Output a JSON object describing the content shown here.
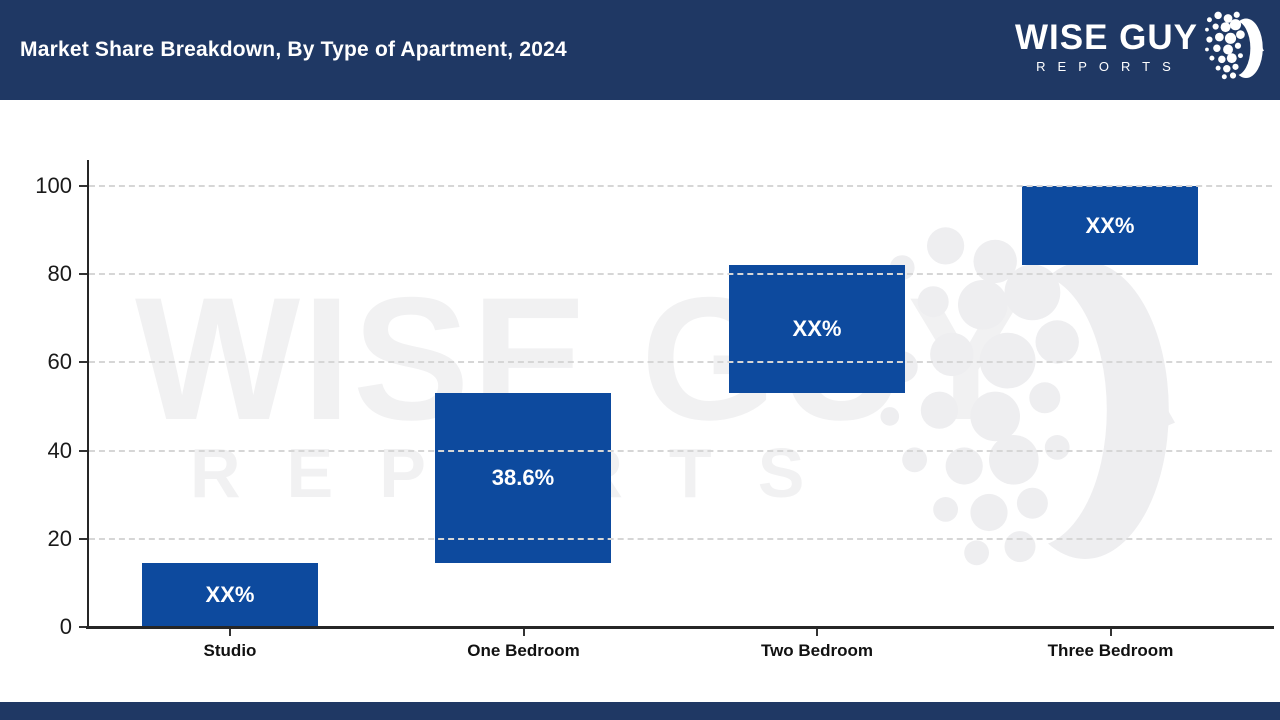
{
  "header": {
    "title": "Market Share Breakdown, By Type of Apartment, 2024",
    "logo": {
      "line1": "WISE GUY",
      "line2": "REPORTS"
    }
  },
  "watermark": {
    "line1": "WISE GUY",
    "line2": "REPORTS"
  },
  "chart_data": {
    "type": "bar",
    "subtype": "waterfall-floating-bars",
    "title": "Market Share Breakdown, By Type of Apartment, 2024",
    "categories": [
      "Studio",
      "One Bedroom",
      "Two Bedroom",
      "Three Bedroom"
    ],
    "series": [
      {
        "name": "Market share (%)",
        "segments": [
          {
            "category": "Studio",
            "start": 0,
            "end": 14.5,
            "value": 14.5,
            "value_label": "XX%"
          },
          {
            "category": "One Bedroom",
            "start": 14.5,
            "end": 53.1,
            "value": 38.6,
            "value_label": "38.6%"
          },
          {
            "category": "Two Bedroom",
            "start": 53.1,
            "end": 82,
            "value": 28.9,
            "value_label": "XX%"
          },
          {
            "category": "Three Bedroom",
            "start": 82,
            "end": 100,
            "value": 18,
            "value_label": "XX%"
          }
        ]
      }
    ],
    "xlabel": "",
    "ylabel": "",
    "ylim": [
      0,
      100
    ],
    "yticks": [
      0,
      20,
      40,
      60,
      80,
      100
    ],
    "grid": "horizontal dashed, drawn above bars",
    "legend": "none",
    "bar_color": "#0D4A9E"
  },
  "colors": {
    "header_bg": "#1F3864",
    "footer_bg": "#1F3864",
    "bar": "#0D4A9E",
    "axis": "#262626",
    "gridline": "#D6D6D6",
    "watermark": "#F1F1F2",
    "title_text": "#FFFFFF"
  }
}
